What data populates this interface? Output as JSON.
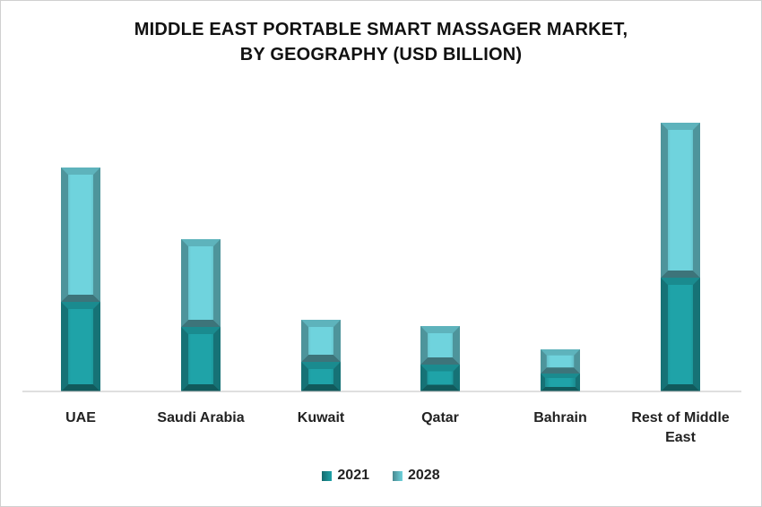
{
  "chart_data": {
    "type": "bar",
    "stacked": true,
    "title_lines": [
      "MIDDLE EAST PORTABLE SMART MASSAGER MARKET,",
      "BY GEOGRAPHY (USD BILLION)"
    ],
    "xlabel": "",
    "ylabel": "",
    "y_axis_visible": false,
    "grid": false,
    "legend_position": "bottom",
    "categories": [
      "UAE",
      "Saudi Arabia",
      "Kuwait",
      "Qatar",
      "Bahrain",
      "Rest of Middle East"
    ],
    "category_label_lines": [
      [
        "UAE"
      ],
      [
        "Saudi Arabia"
      ],
      [
        "Kuwait"
      ],
      [
        "Qatar"
      ],
      [
        "Bahrain"
      ],
      [
        "Rest of Middle",
        "East"
      ]
    ],
    "series": [
      {
        "name": "2021",
        "values": [
          100,
          72,
          33,
          30,
          20,
          127
        ],
        "color": "#1fa3a8"
      },
      {
        "name": "2028",
        "values": [
          150,
          98,
          47,
          43,
          27,
          173
        ],
        "color": "#6fd3dd"
      }
    ],
    "ylim": [
      0,
      300
    ]
  }
}
